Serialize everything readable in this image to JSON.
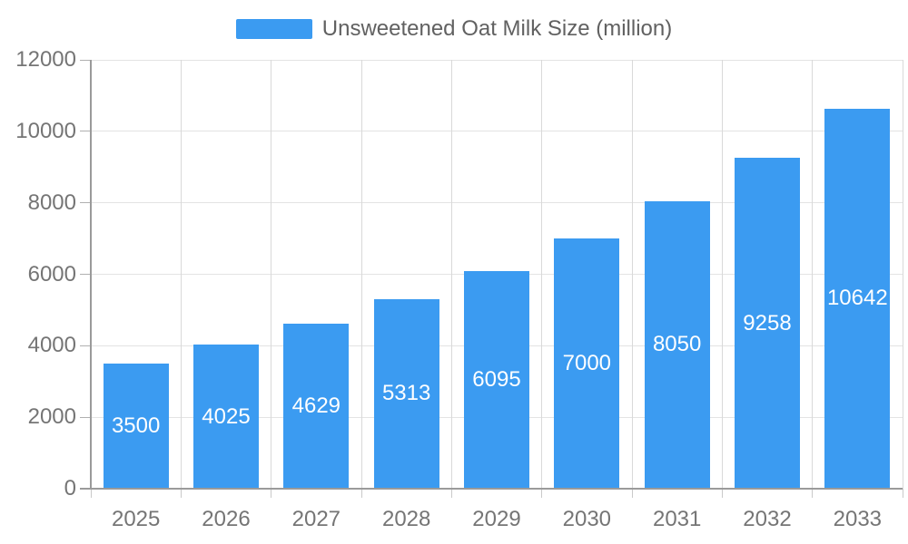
{
  "legend": {
    "label": "Unsweetened Oat Milk Size (million)"
  },
  "chart_data": {
    "type": "bar",
    "title": "",
    "series_name": "Unsweetened Oat Milk Size (million)",
    "legend_entries": [
      "Unsweetened Oat Milk Size (million)"
    ],
    "legend_position": "top",
    "categories": [
      "2025",
      "2026",
      "2027",
      "2028",
      "2029",
      "2030",
      "2031",
      "2032",
      "2033"
    ],
    "values": [
      3500,
      4025,
      4629,
      5313,
      6095,
      7000,
      8050,
      9258,
      10642
    ],
    "xlabel": "",
    "ylabel": "",
    "ylim": [
      0,
      12000
    ],
    "yticks": [
      0,
      2000,
      4000,
      6000,
      8000,
      10000,
      12000
    ],
    "grid": true,
    "bar_color": "#3B9BF1",
    "bar_label_color": "#FFFFFF",
    "axis_text_color": "#757575"
  }
}
